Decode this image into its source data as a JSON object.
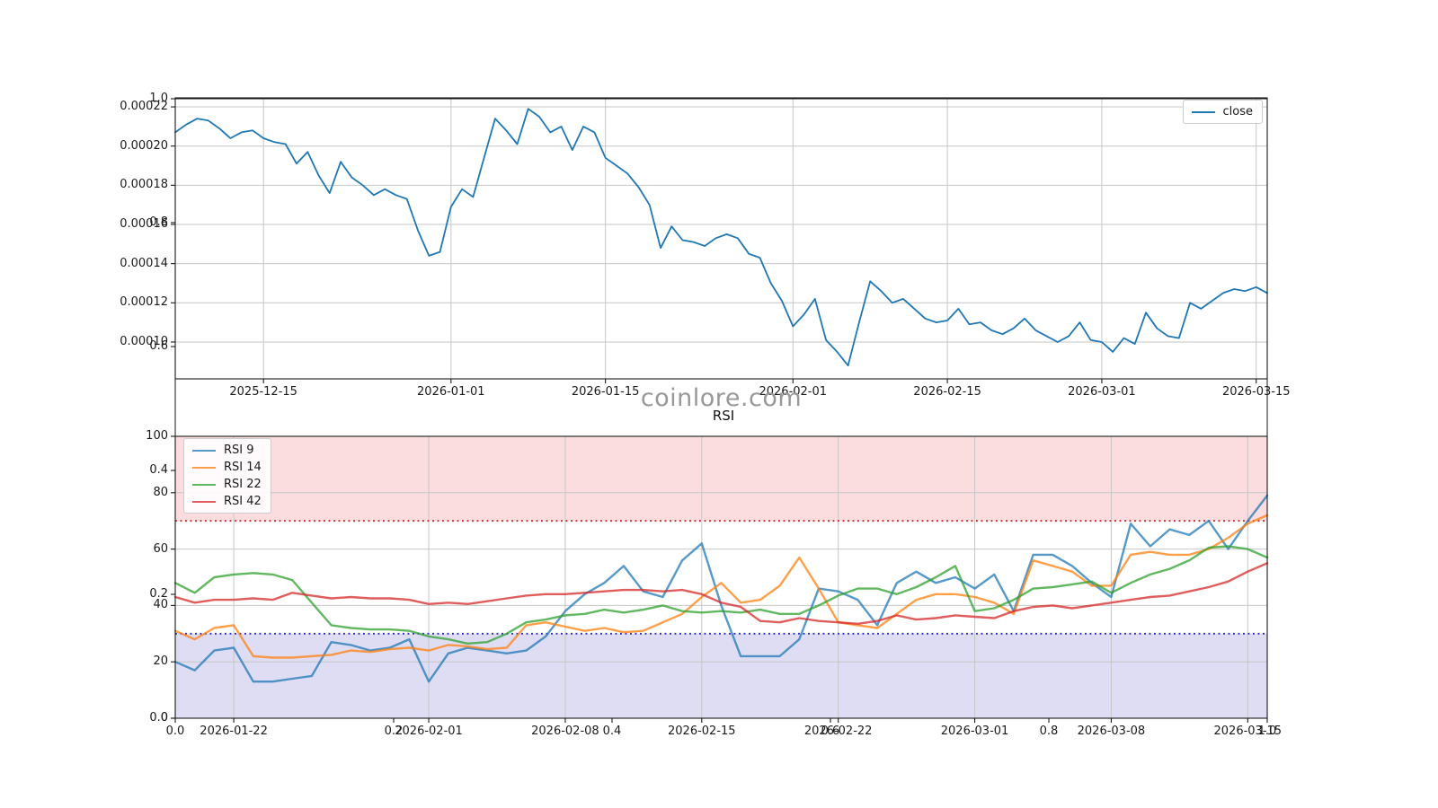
{
  "watermark": "coinlore.com",
  "style": {
    "background": "#ffffff",
    "grid_color": "#c6c6c6",
    "spine_color": "#1a1a1a",
    "tick_label_color": "#1a1a1a",
    "watermark_color": "#989898",
    "legend_border": "#cccccc"
  },
  "overlay_axis": {
    "left_ticks": [
      "1.0",
      "0.8",
      "0.6",
      "0.4",
      "0.2",
      "0.0"
    ],
    "bottom_ticks": [
      "0.0",
      "0.2",
      "0.4",
      "0.6",
      "0.8",
      "1.0"
    ]
  },
  "chart_data": [
    {
      "type": "line",
      "name": "price",
      "title": "",
      "xlabel": "",
      "ylabel": "",
      "grid": true,
      "legend_position": "upper right",
      "x_unit": "day",
      "x_start_date": "2025-12-07",
      "x_total_days": 99,
      "x_ticks": [
        {
          "label": "2025-12-15",
          "day": 8
        },
        {
          "label": "2026-01-01",
          "day": 25
        },
        {
          "label": "2026-01-15",
          "day": 39
        },
        {
          "label": "2026-02-01",
          "day": 56
        },
        {
          "label": "2026-02-15",
          "day": 70
        },
        {
          "label": "2026-03-01",
          "day": 84
        },
        {
          "label": "2026-03-15",
          "day": 98
        }
      ],
      "ylim": [
        8.12e-05,
        0.0002246
      ],
      "y_ticks": [
        {
          "v": 0.00022,
          "label": "0.00022"
        },
        {
          "v": 0.0002,
          "label": "0.00020"
        },
        {
          "v": 0.00018,
          "label": "0.00018"
        },
        {
          "v": 0.00016,
          "label": "0.00016"
        },
        {
          "v": 0.00014,
          "label": "0.00014"
        },
        {
          "v": 0.00012,
          "label": "0.00012"
        },
        {
          "v": 0.0001,
          "label": "0.00010"
        }
      ],
      "series": [
        {
          "name": "close",
          "color": "#1f77b4",
          "alpha": 1,
          "width": 1.8,
          "values": [
            0.000207,
            0.000211,
            0.000214,
            0.000213,
            0.000209,
            0.000204,
            0.000207,
            0.000208,
            0.000204,
            0.000202,
            0.000201,
            0.000191,
            0.000197,
            0.000185,
            0.000176,
            0.000192,
            0.000184,
            0.00018,
            0.000175,
            0.000178,
            0.000175,
            0.000173,
            0.000157,
            0.000144,
            0.000146,
            0.000169,
            0.000178,
            0.000174,
            0.000194,
            0.000214,
            0.000208,
            0.000201,
            0.000219,
            0.000215,
            0.000207,
            0.00021,
            0.000198,
            0.00021,
            0.000207,
            0.000194,
            0.00019,
            0.000186,
            0.000179,
            0.00017,
            0.000148,
            0.000159,
            0.000152,
            0.000151,
            0.000149,
            0.000153,
            0.000155,
            0.000153,
            0.000145,
            0.000143,
            0.00013,
            0.000121,
            0.000108,
            0.000114,
            0.000122,
            0.000101,
            9.5e-05,
            8.8e-05,
            0.00011,
            0.000131,
            0.000126,
            0.00012,
            0.000122,
            0.000117,
            0.000112,
            0.00011,
            0.000111,
            0.000117,
            0.000109,
            0.00011,
            0.000106,
            0.000104,
            0.000107,
            0.000112,
            0.000106,
            0.000103,
            0.0001,
            0.000103,
            0.00011,
            0.000101,
            0.0001,
            9.5e-05,
            0.000102,
            9.9e-05,
            0.000115,
            0.000107,
            0.000103,
            0.000102,
            0.00012,
            0.000117,
            0.000121,
            0.000125,
            0.000127,
            0.000126,
            0.000128,
            0.000125
          ]
        }
      ]
    },
    {
      "type": "line",
      "name": "rsi",
      "title": "RSI",
      "xlabel": "",
      "ylabel": "",
      "grid": true,
      "legend_position": "upper left",
      "x_unit": "day",
      "x_start_date": "2026-01-19",
      "x_total_days": 56,
      "x_ticks": [
        {
          "label": "2026-01-22",
          "day": 3
        },
        {
          "label": "2026-02-01",
          "day": 13
        },
        {
          "label": "2026-02-08",
          "day": 20
        },
        {
          "label": "2026-02-15",
          "day": 27
        },
        {
          "label": "2026-02-22",
          "day": 34
        },
        {
          "label": "2026-03-01",
          "day": 41
        },
        {
          "label": "2026-03-08",
          "day": 48
        },
        {
          "label": "2026-03-15",
          "day": 55
        }
      ],
      "ylim": [
        0,
        100
      ],
      "y_ticks": [
        {
          "v": 100,
          "label": "100"
        },
        {
          "v": 80,
          "label": "80"
        },
        {
          "v": 60,
          "label": "60"
        },
        {
          "v": 40,
          "label": "40"
        },
        {
          "v": 20,
          "label": "20"
        },
        {
          "v": 0,
          "label": "0"
        }
      ],
      "bands": [
        {
          "from": 70,
          "to": 100,
          "color": "#fbdde0",
          "meaning": "overbought"
        },
        {
          "from": 0,
          "to": 30,
          "color": "#dfddf4",
          "meaning": "oversold"
        }
      ],
      "threshold_lines": [
        {
          "v": 70,
          "color": "#d02028",
          "style": "dotted"
        },
        {
          "v": 30,
          "color": "#2024c8",
          "style": "dotted"
        }
      ],
      "series": [
        {
          "name": "RSI 9",
          "color": "#1f77b4",
          "alpha": 0.75,
          "width": 2.4,
          "values": [
            20,
            17,
            24,
            25,
            13,
            13,
            14,
            15,
            27,
            26,
            24,
            25,
            28,
            13,
            23,
            25,
            24,
            23,
            24,
            29,
            38,
            44,
            48,
            54,
            45,
            43,
            56,
            62,
            40,
            22,
            22,
            22,
            28,
            46,
            45,
            42,
            33,
            48,
            52,
            48,
            50,
            46,
            51,
            38,
            58,
            58,
            54,
            48,
            43,
            69,
            61,
            67,
            65,
            70,
            60,
            70,
            79
          ]
        },
        {
          "name": "RSI 14",
          "color": "#ff7f0e",
          "alpha": 0.75,
          "width": 2.4,
          "values": [
            31,
            28,
            32,
            33,
            22,
            21.5,
            21.5,
            22,
            22.5,
            24,
            23.5,
            24.5,
            25,
            24,
            26,
            25.5,
            24.5,
            25,
            33,
            34,
            32.5,
            31,
            32,
            30.5,
            31,
            34,
            37,
            43,
            48,
            41,
            42,
            47,
            57,
            46,
            34,
            33,
            32,
            37,
            42,
            44,
            44,
            43,
            41,
            37,
            56,
            54,
            52,
            47,
            47,
            58,
            59,
            58,
            58,
            60,
            64,
            69,
            72
          ]
        },
        {
          "name": "RSI 22",
          "color": "#2ca02c",
          "alpha": 0.75,
          "width": 2.4,
          "values": [
            48,
            44.5,
            50,
            51,
            51.5,
            51,
            49,
            41,
            33,
            32,
            31.5,
            31.5,
            31,
            29,
            28,
            26.5,
            27,
            30,
            34,
            35,
            36.5,
            37,
            38.5,
            37.5,
            38.5,
            40,
            38,
            37.5,
            38,
            37.5,
            38.5,
            37,
            37,
            40,
            43.5,
            46,
            46,
            44,
            46.5,
            50,
            54,
            38,
            39,
            42,
            46,
            46.5,
            47.5,
            48.5,
            44.5,
            48,
            51,
            53,
            56,
            60.5,
            61,
            60,
            57
          ]
        },
        {
          "name": "RSI 42",
          "color": "#d62728",
          "alpha": 0.75,
          "width": 2.4,
          "values": [
            43,
            41,
            42,
            42,
            42.5,
            42,
            44.5,
            43.5,
            42.5,
            43,
            42.5,
            42.5,
            42,
            40.5,
            41,
            40.5,
            41.5,
            42.5,
            43.5,
            44,
            44,
            44.5,
            45,
            45.5,
            45.5,
            45,
            45.5,
            44,
            41,
            39.5,
            34.5,
            34,
            35.5,
            34.5,
            34,
            33.5,
            34.5,
            36.5,
            35,
            35.5,
            36.5,
            36,
            35.5,
            38,
            39.5,
            40,
            39,
            40,
            41,
            42,
            43,
            43.5,
            45,
            46.5,
            48.5,
            52,
            55
          ]
        }
      ]
    }
  ]
}
